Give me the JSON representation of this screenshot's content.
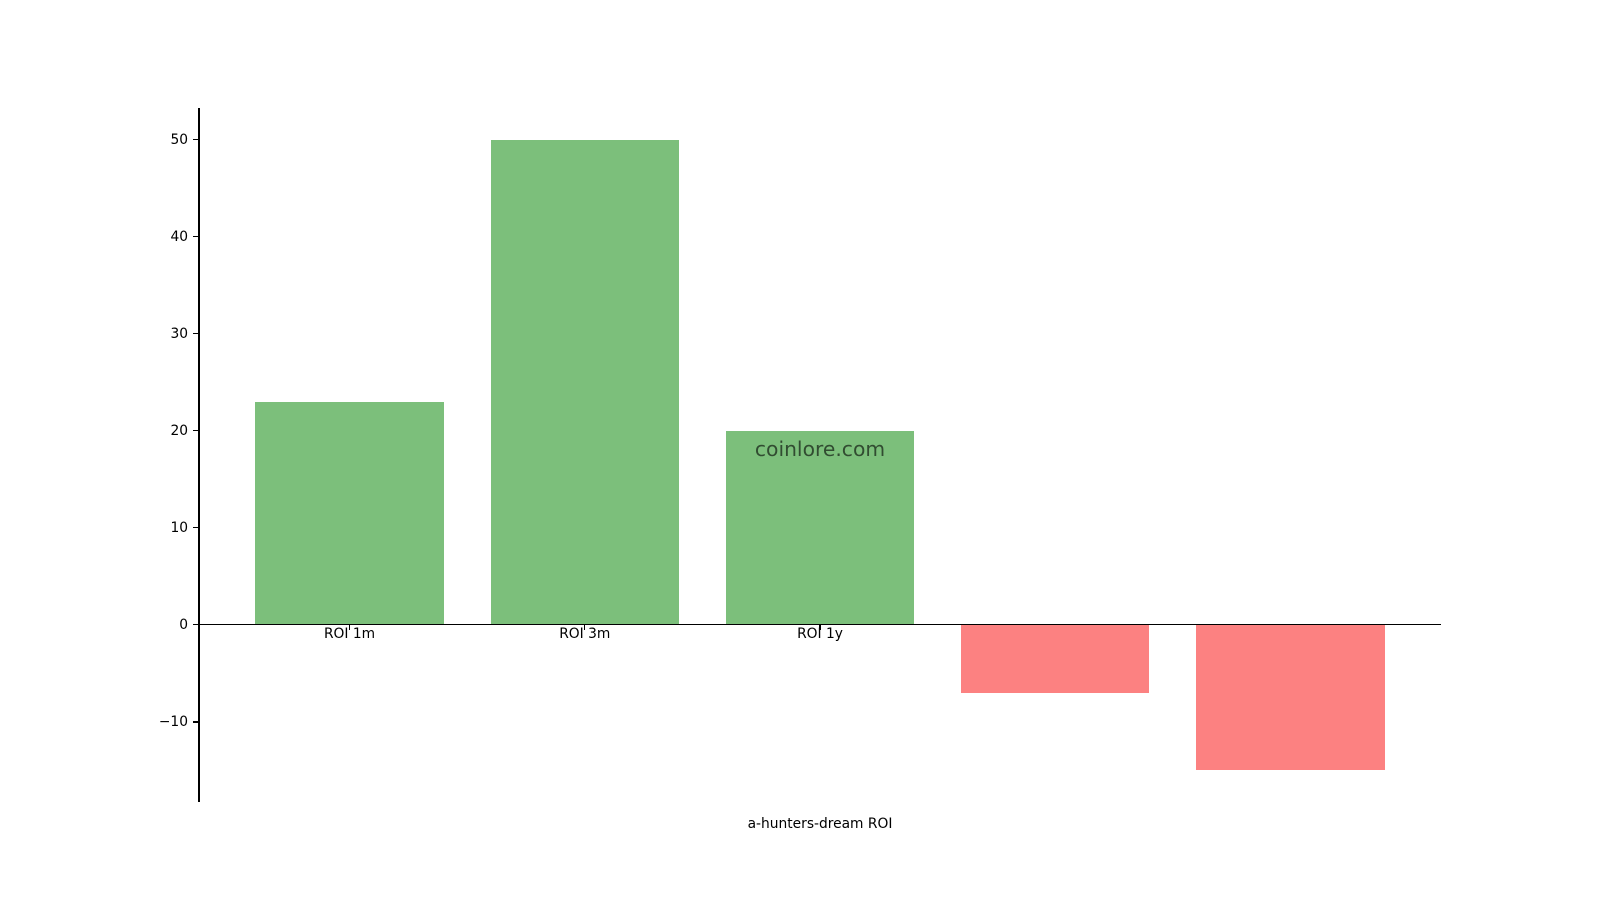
{
  "chart_data": {
    "type": "bar",
    "title": "",
    "xlabel": "a-hunters-dream ROI",
    "ylabel": "",
    "watermark": "coinlore.com",
    "categories": [
      "ROI 1m",
      "ROI 3m",
      "ROI 1y",
      "",
      ""
    ],
    "values": [
      23,
      50,
      20,
      -7,
      -15
    ],
    "bar_width_ratio": 0.8,
    "xlim": [
      -0.64,
      4.64
    ],
    "ylim": [
      -18.25,
      53.25
    ],
    "yticks": [
      50,
      40,
      30,
      20,
      10,
      0,
      -10
    ],
    "ytick_labels": [
      "50",
      "40",
      "30",
      "20",
      "10",
      "0",
      "−10"
    ],
    "grid": false,
    "legend": null,
    "colors": {
      "positive": "#7cbf7b",
      "negative": "#fc8181",
      "axis": "#000000",
      "tick_text": "#000000",
      "background": "#ffffff"
    }
  }
}
